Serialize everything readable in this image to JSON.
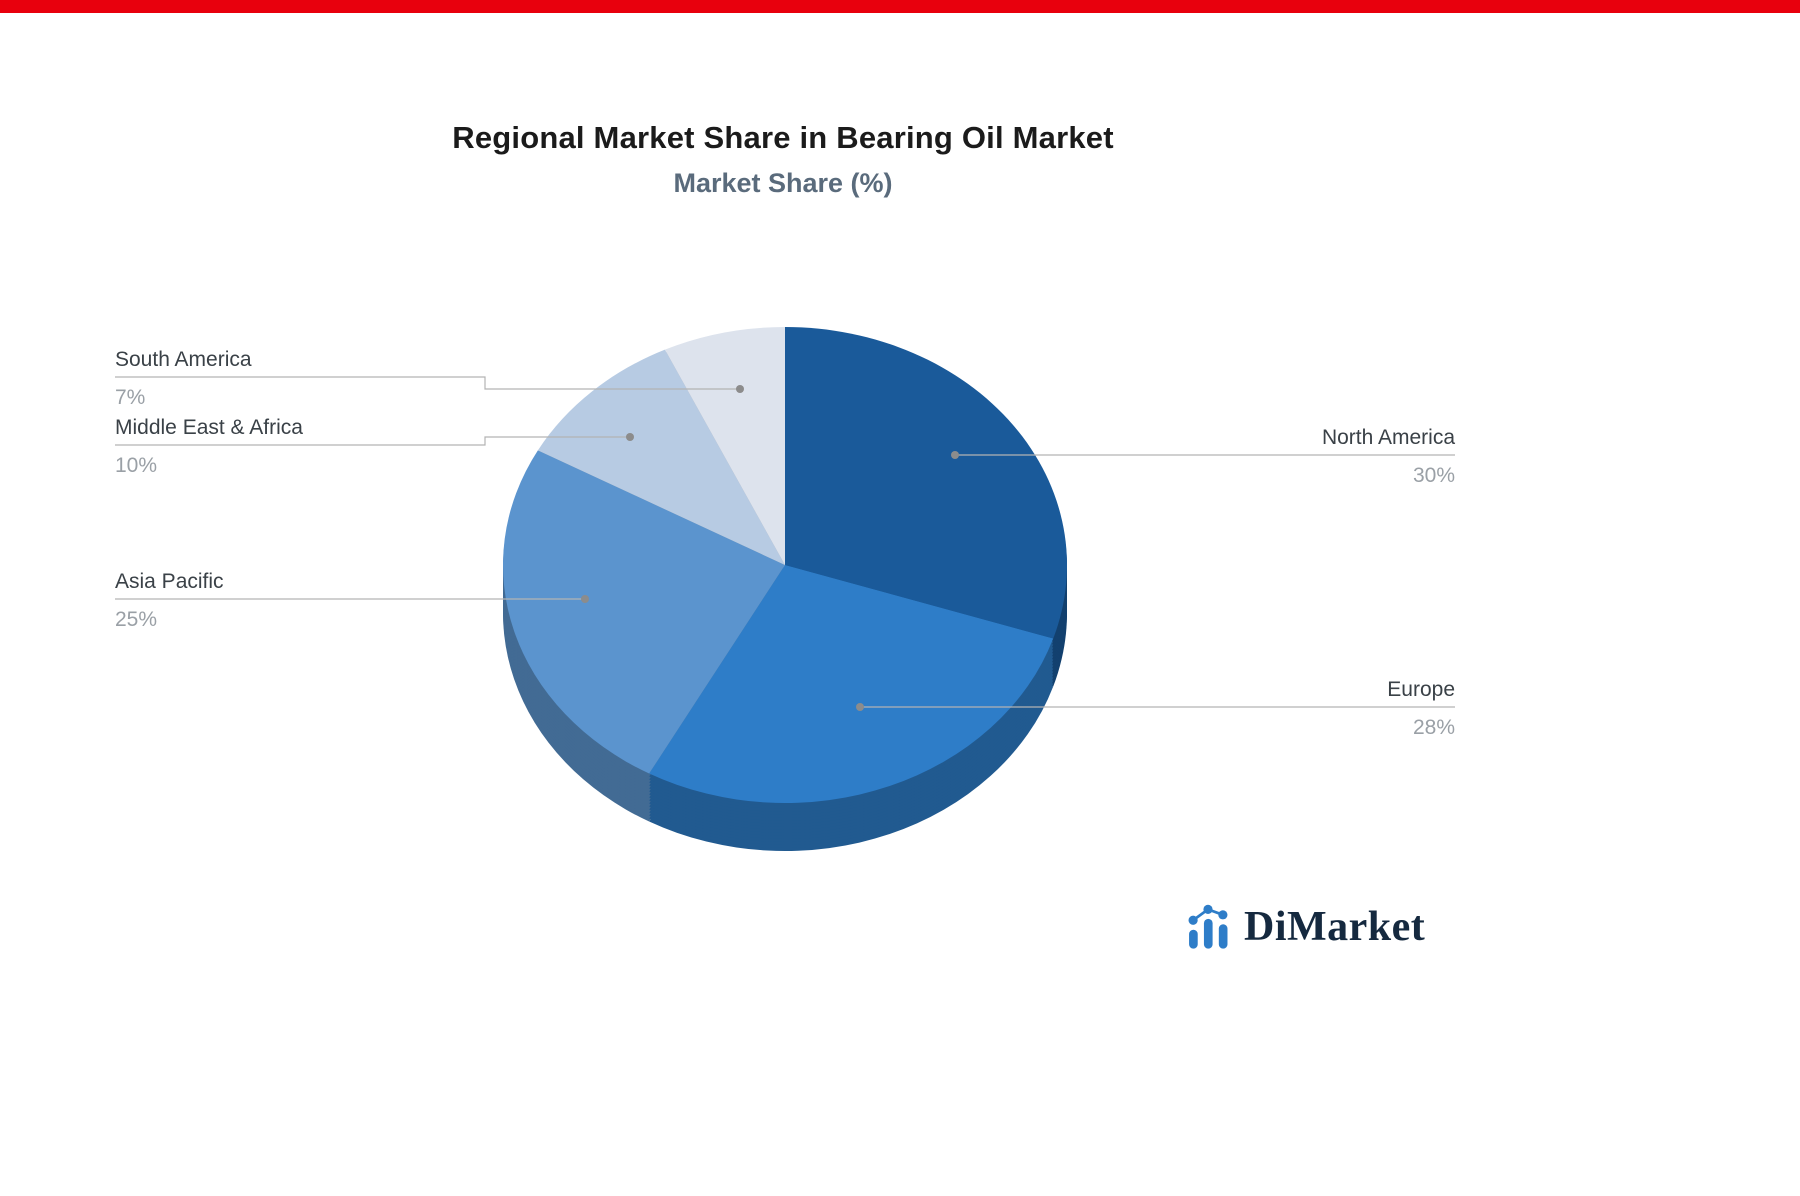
{
  "page": {
    "top_bar_color": "#e8000d"
  },
  "chart_data": {
    "type": "pie",
    "effect": "3d",
    "title": "Regional Market Share in Bearing Oil Market",
    "subtitle": "Market Share (%)",
    "unit": "%",
    "start_angle": "top",
    "direction": "clockwise",
    "legend_position": "callout-labels",
    "slices": [
      {
        "label": "North America",
        "value": 30,
        "display": "30%",
        "color": "#1a5a9a"
      },
      {
        "label": "Europe",
        "value": 28,
        "display": "28%",
        "color": "#2e7dc8"
      },
      {
        "label": "Asia Pacific",
        "value": 25,
        "display": "25%",
        "color": "#5b94ce"
      },
      {
        "label": "Middle East & Africa",
        "value": 10,
        "display": "10%",
        "color": "#b7cbe3"
      },
      {
        "label": "South America",
        "value": 7,
        "display": "7%",
        "color": "#dde3ed"
      }
    ]
  },
  "logo": {
    "text": "DiMarket",
    "icon": "mini-bar-chart-icon",
    "icon_color": "#2e7dc8",
    "text_color": "#15293f"
  }
}
